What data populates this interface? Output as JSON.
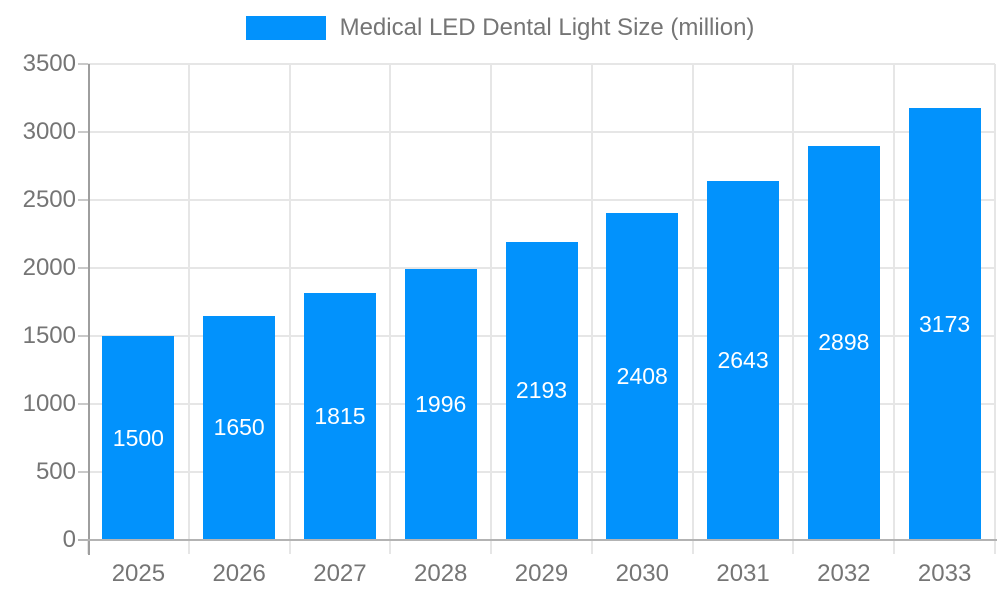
{
  "chart_data": {
    "type": "bar",
    "title": "Medical LED Dental Light Size (million)",
    "legend": {
      "position": "top",
      "label": "Medical LED Dental Light Size (million)"
    },
    "categories": [
      "2025",
      "2026",
      "2027",
      "2028",
      "2029",
      "2030",
      "2031",
      "2032",
      "2033"
    ],
    "series": [
      {
        "name": "Medical LED Dental Light Size (million)",
        "values": [
          1500,
          1650,
          1815,
          1996,
          2193,
          2408,
          2643,
          2898,
          3173
        ]
      }
    ],
    "data_labels_shown": true,
    "xlabel": "",
    "ylabel": "",
    "ylim": [
      0,
      3500
    ],
    "yticks": [
      0,
      500,
      1000,
      1500,
      2000,
      2500,
      3000,
      3500
    ],
    "grid": true
  },
  "colors": {
    "bar": "#0292fc",
    "label_text": "#757575",
    "bar_value_text": "#ffffff",
    "gridline": "#e6e6e6",
    "baseline": "#b3b3b3",
    "axis_line": "#9e9e9e",
    "tick": "#c9c9c9",
    "background": "#ffffff"
  }
}
